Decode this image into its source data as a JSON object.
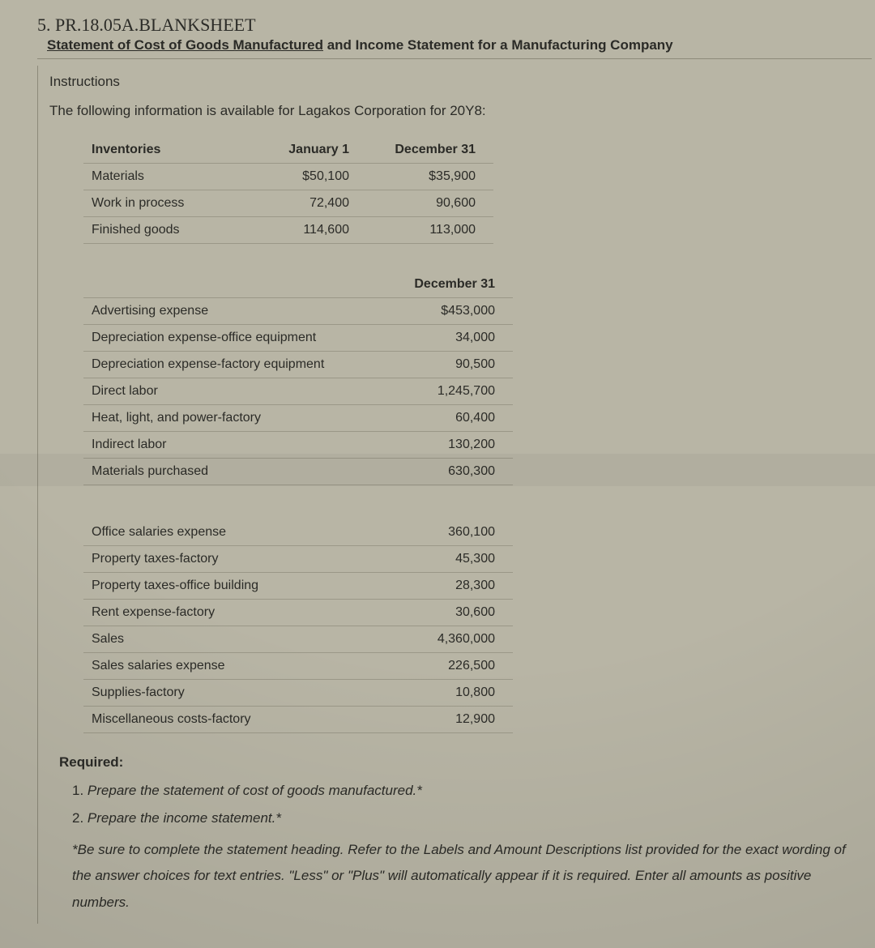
{
  "problem_number": "5. PR.18.05A.BLANKSHEET",
  "title_underlined": "Statement of Cost of Goods Manufactured",
  "title_rest": " and Income Statement for a Manufacturing Company",
  "instructions_heading": "Instructions",
  "intro_text": "The following information is available for Lagakos Corporation for 20Y8:",
  "inv_table": {
    "headers": [
      "Inventories",
      "January 1",
      "December 31"
    ],
    "rows": [
      [
        "Materials",
        "$50,100",
        "$35,900"
      ],
      [
        "Work in process",
        "72,400",
        "90,600"
      ],
      [
        "Finished goods",
        "114,600",
        "113,000"
      ]
    ]
  },
  "exp_table": {
    "header_right": "December 31",
    "rows_a": [
      [
        "Advertising expense",
        "$453,000"
      ],
      [
        "Depreciation expense-office equipment",
        "34,000"
      ],
      [
        "Depreciation expense-factory equipment",
        "90,500"
      ],
      [
        "Direct labor",
        "1,245,700"
      ],
      [
        "Heat, light, and power-factory",
        "60,400"
      ],
      [
        "Indirect labor",
        "130,200"
      ],
      [
        "Materials purchased",
        "630,300"
      ]
    ],
    "rows_b": [
      [
        "Office salaries expense",
        "360,100"
      ],
      [
        "Property taxes-factory",
        "45,300"
      ],
      [
        "Property taxes-office building",
        "28,300"
      ],
      [
        "Rent expense-factory",
        "30,600"
      ],
      [
        "Sales",
        "4,360,000"
      ],
      [
        "Sales salaries expense",
        "226,500"
      ],
      [
        "Supplies-factory",
        "10,800"
      ],
      [
        "Miscellaneous costs-factory",
        "12,900"
      ]
    ]
  },
  "required_heading": "Required:",
  "req1_num": "1. ",
  "req1_text": "Prepare the statement of cost of goods manufactured.*",
  "req2_num": "2. ",
  "req2_text": "Prepare the income statement.*",
  "footnote": "*Be sure to complete the statement heading. Refer to the Labels and Amount Descriptions list provided for the exact wording of the answer choices for text entries. \"Less\" or \"Plus\" will automatically appear if it is required. Enter all amounts as positive numbers.",
  "colors": {
    "page_bg": "#b8b5a5",
    "text": "#262622",
    "rule": "#8d8a7a"
  }
}
